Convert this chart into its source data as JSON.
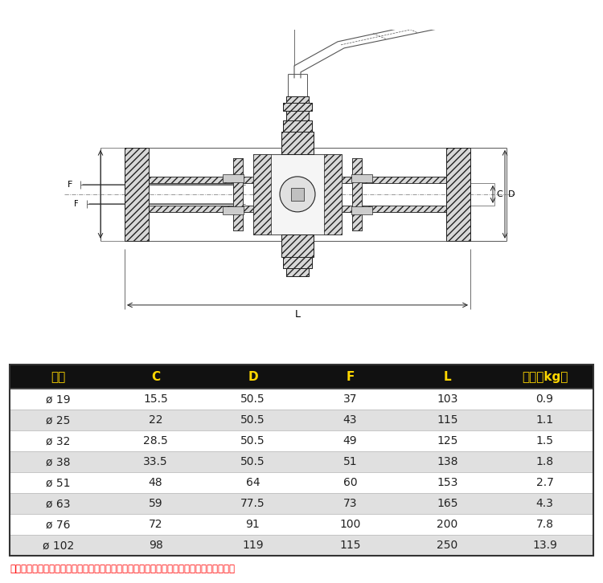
{
  "table_header": [
    "尺寸",
    "C",
    "D",
    "F",
    "L",
    "重量（kg）"
  ],
  "table_rows": [
    [
      "ø 19",
      "15.5",
      "50.5",
      "37",
      "103",
      "0.9"
    ],
    [
      "ø 25",
      "22",
      "50.5",
      "43",
      "115",
      "1.1"
    ],
    [
      "ø 32",
      "28.5",
      "50.5",
      "49",
      "125",
      "1.5"
    ],
    [
      "ø 38",
      "33.5",
      "50.5",
      "51",
      "138",
      "1.8"
    ],
    [
      "ø 51",
      "48",
      "64",
      "60",
      "153",
      "2.7"
    ],
    [
      "ø 63",
      "59",
      "77.5",
      "73",
      "165",
      "4.3"
    ],
    [
      "ø 76",
      "72",
      "91",
      "100",
      "200",
      "7.8"
    ],
    [
      "ø 102",
      "98",
      "119",
      "115",
      "250",
      "13.9"
    ]
  ],
  "header_bg": "#111111",
  "header_fg": "#FFD700",
  "row_bg_odd": "#ffffff",
  "row_bg_even": "#e0e0e0",
  "note_text": "注：对螺纹规格不熟悉的买家购前请核对公制尺寸，螺纹有锥度，尺寸是近似值，仅供参考",
  "note_color": "#ff0000",
  "lc": "#555555",
  "lc_dark": "#222222",
  "hatch_fc": "#d8d8d8"
}
